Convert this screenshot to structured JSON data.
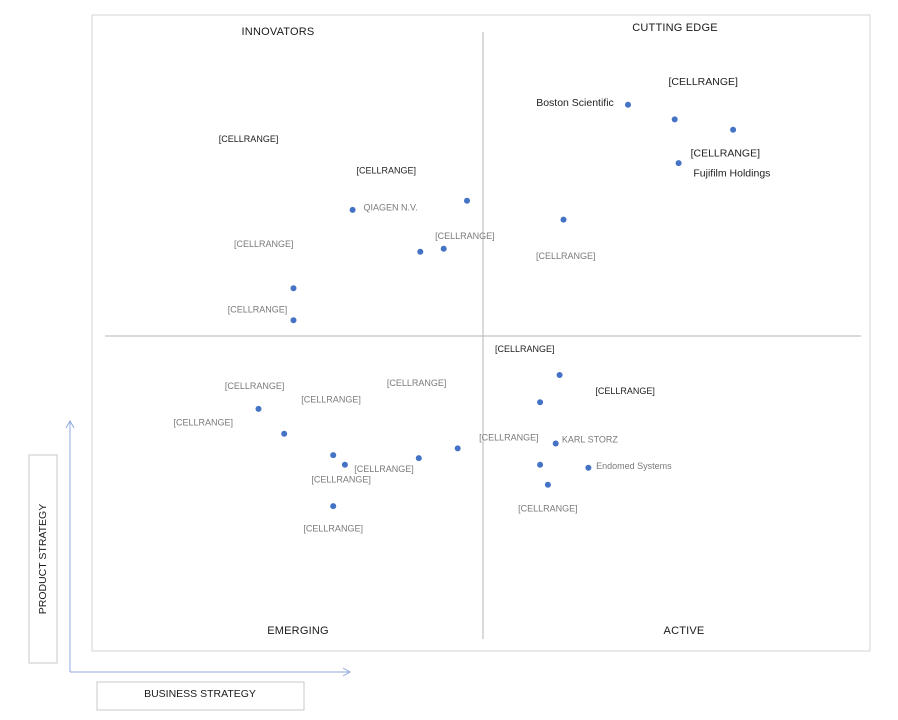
{
  "chart_data": {
    "type": "scatter",
    "title": "",
    "xlabel": "BUSINESS STRATEGY",
    "ylabel": "PRODUCT STRATEGY",
    "xlim": [
      0,
      100
    ],
    "ylim": [
      0,
      100
    ],
    "grid": false,
    "colors": {
      "point": "#4472c4",
      "axis_line": "#b4b4b4",
      "frame": "#d6d6d6",
      "arrow": "#8ea9db"
    },
    "quadrants": {
      "top_left": "INNOVATORS",
      "top_right": "CUTTING EDGE",
      "bottom_left": "EMERGING",
      "bottom_right": "ACTIVE"
    },
    "points": [
      {
        "x": 68.9,
        "y": 88.0
      },
      {
        "x": 74.9,
        "y": 85.6
      },
      {
        "x": 82.4,
        "y": 83.9
      },
      {
        "x": 75.4,
        "y": 78.4
      },
      {
        "x": 60.6,
        "y": 69.1
      },
      {
        "x": 48.2,
        "y": 72.2
      },
      {
        "x": 33.5,
        "y": 70.7
      },
      {
        "x": 45.2,
        "y": 64.3
      },
      {
        "x": 42.2,
        "y": 63.8
      },
      {
        "x": 25.9,
        "y": 57.8
      },
      {
        "x": 25.9,
        "y": 52.5
      },
      {
        "x": 60.1,
        "y": 43.5
      },
      {
        "x": 57.6,
        "y": 39.0
      },
      {
        "x": 59.6,
        "y": 32.2
      },
      {
        "x": 57.6,
        "y": 28.7
      },
      {
        "x": 63.8,
        "y": 28.2
      },
      {
        "x": 58.6,
        "y": 25.4
      },
      {
        "x": 21.4,
        "y": 37.9
      },
      {
        "x": 24.7,
        "y": 33.8
      },
      {
        "x": 31.0,
        "y": 30.3
      },
      {
        "x": 32.5,
        "y": 28.7
      },
      {
        "x": 42.0,
        "y": 29.8
      },
      {
        "x": 47.0,
        "y": 31.4
      },
      {
        "x": 31.0,
        "y": 21.9
      }
    ],
    "annotations": [
      {
        "text": "Boston Scientific",
        "x": 57.1,
        "y": 87.8,
        "style": "dark big",
        "anchor": "start"
      },
      {
        "text": "[CELLRANGE]",
        "x": 74.1,
        "y": 91.3,
        "style": "dark big",
        "anchor": "start"
      },
      {
        "text": "[CELLRANGE]",
        "x": 81.4,
        "y": 79.5,
        "style": "dark big",
        "anchor": "middle"
      },
      {
        "text": "Fujifilm Holdings",
        "x": 77.3,
        "y": 76.2,
        "style": "dark big",
        "anchor": "start"
      },
      {
        "text": "[CELLRANGE]",
        "x": 16.3,
        "y": 81.9,
        "style": "dark",
        "anchor": "start"
      },
      {
        "text": "[CELLRANGE]",
        "x": 34.0,
        "y": 76.7,
        "style": "dark",
        "anchor": "start"
      },
      {
        "text": "QIAGEN N.V.",
        "x": 34.9,
        "y": 70.6,
        "style": "light",
        "anchor": "start"
      },
      {
        "text": "[CELLRANGE]",
        "x": 44.1,
        "y": 65.9,
        "style": "light",
        "anchor": "start"
      },
      {
        "text": "[CELLRANGE]",
        "x": 60.9,
        "y": 62.6,
        "style": "light",
        "anchor": "middle"
      },
      {
        "text": "[CELLRANGE]",
        "x": 25.9,
        "y": 64.6,
        "style": "light",
        "anchor": "end"
      },
      {
        "text": "[CELLRANGE]",
        "x": 25.1,
        "y": 53.8,
        "style": "light",
        "anchor": "end"
      },
      {
        "text": "[CELLRANGE]",
        "x": 51.8,
        "y": 47.3,
        "style": "dark",
        "anchor": "start"
      },
      {
        "text": "[CELLRANGE]",
        "x": 64.7,
        "y": 40.4,
        "style": "dark",
        "anchor": "start"
      },
      {
        "text": "KARL STORZ",
        "x": 60.4,
        "y": 32.4,
        "style": "light",
        "anchor": "start"
      },
      {
        "text": "Endomed Systems",
        "x": 64.8,
        "y": 28.0,
        "style": "light",
        "anchor": "start"
      },
      {
        "text": "[CELLRANGE]",
        "x": 57.4,
        "y": 32.7,
        "style": "light",
        "anchor": "end"
      },
      {
        "text": "[CELLRANGE]",
        "x": 58.6,
        "y": 21.0,
        "style": "light",
        "anchor": "middle"
      },
      {
        "text": "[CELLRANGE]",
        "x": 37.9,
        "y": 41.7,
        "style": "light",
        "anchor": "start"
      },
      {
        "text": "[CELLRANGE]",
        "x": 20.9,
        "y": 41.2,
        "style": "light",
        "anchor": "middle"
      },
      {
        "text": "[CELLRANGE]",
        "x": 26.9,
        "y": 39.0,
        "style": "light",
        "anchor": "start"
      },
      {
        "text": "[CELLRANGE]",
        "x": 14.3,
        "y": 35.2,
        "style": "light",
        "anchor": "middle"
      },
      {
        "text": "[CELLRANGE]",
        "x": 33.7,
        "y": 27.5,
        "style": "light",
        "anchor": "start"
      },
      {
        "text": "[CELLRANGE]",
        "x": 28.2,
        "y": 25.8,
        "style": "light",
        "anchor": "start"
      },
      {
        "text": "[CELLRANGE]",
        "x": 31.0,
        "y": 17.7,
        "style": "light",
        "anchor": "middle"
      }
    ]
  }
}
